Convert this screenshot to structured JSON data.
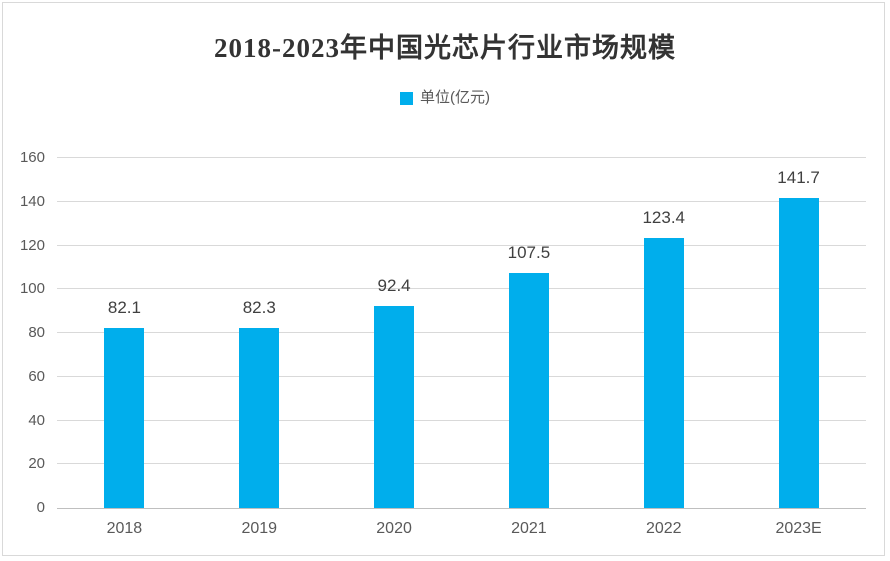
{
  "chart": {
    "title": "2018-2023年中国光芯片行业市场规模",
    "legend": {
      "label": "单位(亿元)",
      "swatch_color": "#00aeec"
    }
  },
  "chart_data": {
    "type": "bar",
    "title": "2018-2023年中国光芯片行业市场规模",
    "categories": [
      "2018",
      "2019",
      "2020",
      "2021",
      "2022",
      "2023E"
    ],
    "values": [
      82.1,
      82.3,
      92.4,
      107.5,
      123.4,
      141.7
    ],
    "data_labels": [
      "82.1",
      "82.3",
      "92.4",
      "107.5",
      "123.4",
      "141.7"
    ],
    "series_name": "单位(亿元)",
    "unit": "亿元",
    "xlabel": "",
    "ylabel": "",
    "ylim": [
      0,
      160
    ],
    "ytick_step": 20,
    "yticks": [
      0,
      20,
      40,
      60,
      80,
      100,
      120,
      140,
      160
    ],
    "grid": true,
    "legend_position": "top-center",
    "bar_color": "#00aeec",
    "gridline_color": "#d9d9d9",
    "axis_line_color": "#bfbfbf",
    "text_color": "#595959",
    "title_color": "#333333"
  }
}
